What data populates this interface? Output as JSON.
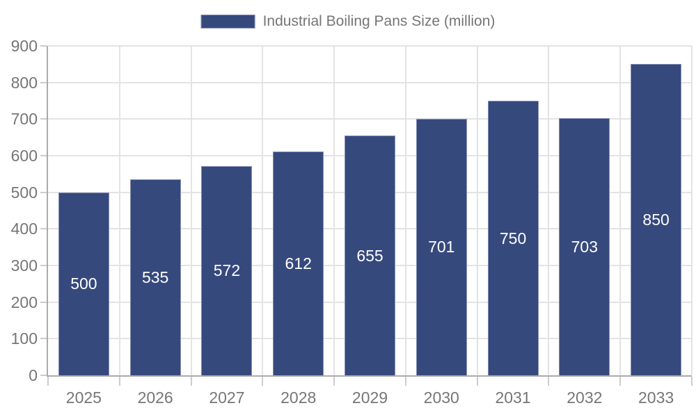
{
  "chart_data": {
    "type": "bar",
    "title": "Industrial Boiling Pans Size (million)",
    "categories": [
      "2025",
      "2026",
      "2027",
      "2028",
      "2029",
      "2030",
      "2031",
      "2032",
      "2033"
    ],
    "values": [
      500,
      535,
      572,
      612,
      655,
      701,
      750,
      703,
      850
    ],
    "xlabel": "",
    "ylabel": "",
    "ylim": [
      0,
      900
    ],
    "y_ticks": [
      0,
      100,
      200,
      300,
      400,
      500,
      600,
      700,
      800,
      900
    ],
    "grid": true,
    "legend_position": "top-center",
    "value_label_position": "inside-center",
    "colors": {
      "bar": "#36497D",
      "bar_border": "#8890B5",
      "grid_line": "#E3E3E3",
      "axis_line": "#ABABAB",
      "tick_line": "#CCCCCC",
      "axis_label": "#767676",
      "legend_text": "#757575",
      "value_label": "#FFFFFF",
      "background": "#FFFFFF"
    }
  }
}
